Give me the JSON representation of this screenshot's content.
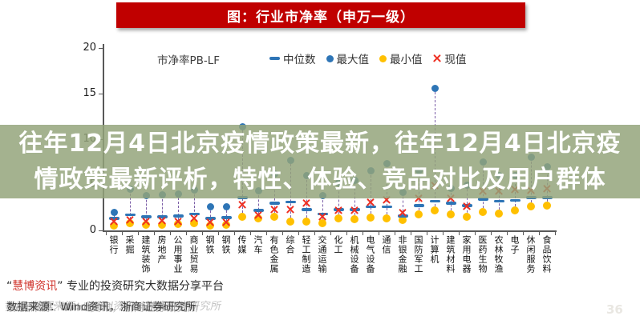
{
  "header": {
    "title": "图：行业市净率（申万一级）",
    "bg_color": "#c00000"
  },
  "overlay": {
    "line1": "往年12月4日北京疫情政策最新，往年12月4日北京疫",
    "line2": "情政策最新评析，特性、体验、竞品对比及用户群体",
    "bg_color": "#92a37a",
    "text_color": "#ffffff"
  },
  "chart_data": {
    "type": "scatter",
    "title": "市净率PB-LF",
    "categories": [
      "银行",
      "采掘",
      "建筑装饰",
      "房地产",
      "公用事业",
      "商业贸易",
      "钢铁",
      "钢铁",
      "传媒",
      "汽车",
      "有色金属",
      "综合",
      "轻工制造",
      "交通运输",
      "化工",
      "机械设备",
      "电气设备",
      "通信",
      "非银金融",
      "国防军工",
      "计算机",
      "建筑材料",
      "家用电器",
      "医药生物",
      "农林牧渔",
      "电子",
      "休闲服务",
      "食品饮料"
    ],
    "series": [
      {
        "name": "中位数",
        "marker": "dash",
        "color": "#2e75b6",
        "values": [
          1.3,
          1.7,
          1.5,
          1.5,
          1.6,
          1.8,
          1.3,
          1.4,
          3.6,
          2.2,
          3.0,
          3.1,
          2.3,
          1.8,
          2.3,
          2.3,
          2.6,
          2.6,
          1.6,
          2.7,
          3.2,
          3.0,
          2.7,
          3.4,
          3.2,
          3.3,
          3.6,
          3.6
        ]
      },
      {
        "name": "最大值",
        "marker": "dot",
        "color": "#2e75b6",
        "values": [
          2.0,
          4.5,
          3.8,
          3.9,
          4.0,
          4.4,
          2.6,
          2.6,
          11.4,
          4.3,
          6.2,
          7.7,
          6.0,
          3.8,
          5.2,
          5.5,
          6.5,
          7.3,
          4.2,
          6.5,
          15.6,
          4.6,
          5.0,
          7.5,
          6.0,
          6.0,
          8.0,
          7.0
        ]
      },
      {
        "name": "最小值",
        "marker": "dot",
        "color": "#ffc000",
        "values": [
          0.5,
          0.8,
          0.6,
          0.6,
          0.7,
          0.8,
          0.5,
          0.6,
          1.5,
          1.3,
          1.5,
          1.0,
          1.0,
          0.8,
          1.3,
          1.2,
          1.4,
          1.3,
          1.1,
          1.75,
          2.2,
          1.75,
          1.5,
          2.0,
          1.85,
          2.2,
          2.6,
          2.7
        ]
      },
      {
        "name": "现值",
        "marker": "x",
        "color": "#ee2f22",
        "values": [
          0.95,
          1.1,
          1.0,
          1.05,
          1.0,
          1.3,
          0.85,
          0.9,
          2.8,
          1.7,
          2.3,
          2.3,
          3.0,
          1.5,
          2.2,
          2.2,
          3.1,
          3.3,
          1.9,
          3.5,
          4.9,
          3.5,
          2.6,
          4.3,
          4.3,
          4.5,
          4.4,
          4.6
        ]
      }
    ],
    "ylim": [
      0,
      20
    ],
    "yticks": [
      0,
      5,
      10,
      15,
      20
    ],
    "legend_position": "top",
    "grid": false,
    "connector_style": "dashed vertical line from max to min, color #7b5ea7"
  },
  "footer": {
    "brand_quote_open": "“",
    "brand": "慧博资讯",
    "brand_quote_close": "”",
    "tagline": "专业的投资研究大数据分享平台",
    "source": "数据来源：Wind资讯，浙商证券研究所"
  },
  "page_number": "36"
}
